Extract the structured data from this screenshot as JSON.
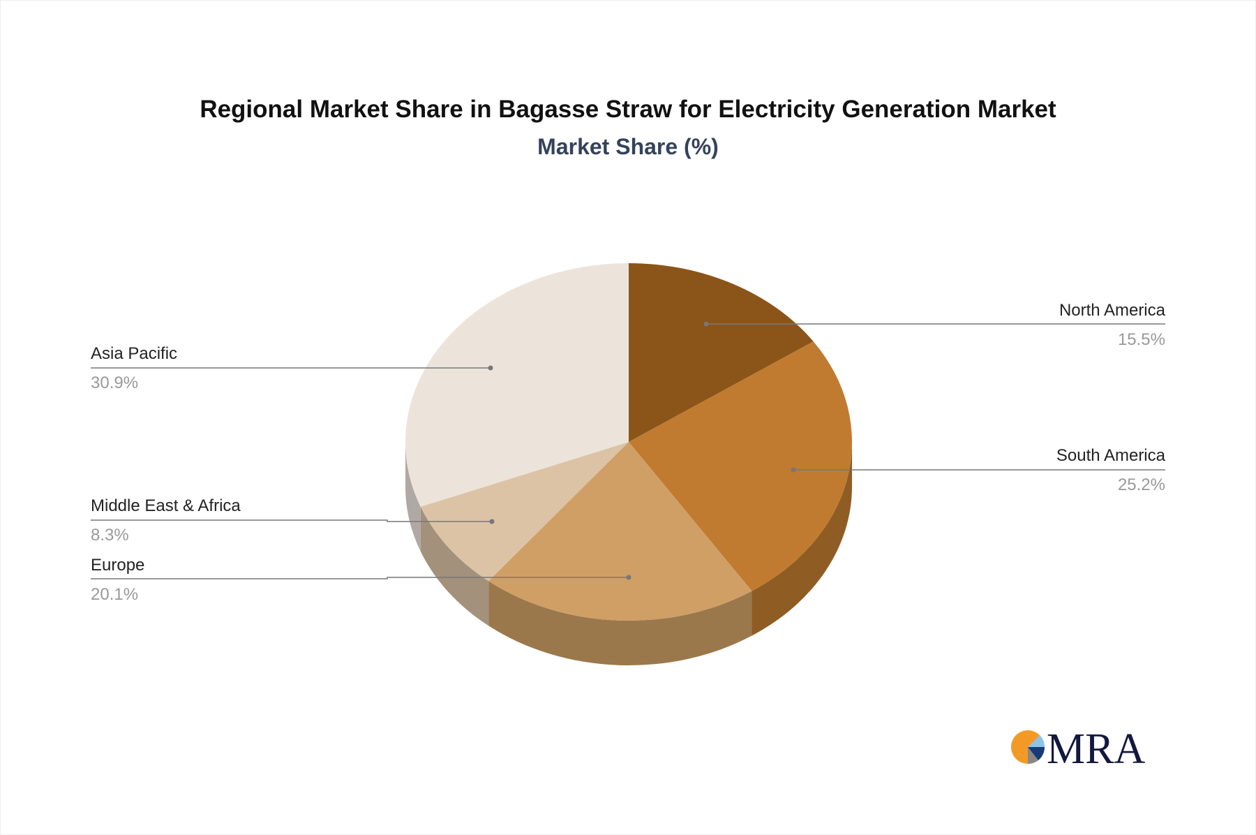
{
  "chart_data": {
    "type": "pie",
    "title": "Regional Market Share in Bagasse Straw for Electricity Generation Market",
    "subtitle": "Market Share (%)",
    "slices": [
      {
        "label": "North America",
        "value": 15.5,
        "display": "15.5%",
        "color": "#8b5519",
        "side": "#8f5c24"
      },
      {
        "label": "South America",
        "value": 25.2,
        "display": "25.2%",
        "color": "#c07b30",
        "side": "#8f5c24"
      },
      {
        "label": "Europe",
        "value": 20.1,
        "display": "20.1%",
        "color": "#d09f66",
        "side": "#9b784c"
      },
      {
        "label": "Middle East & Africa",
        "value": 8.3,
        "display": "8.3%",
        "color": "#dcc3a6",
        "side": "#a4917c"
      },
      {
        "label": "Asia Pacific",
        "value": 30.9,
        "display": "30.9%",
        "color": "#ece4db",
        "side": "#b0a8a3"
      }
    ]
  },
  "logo": {
    "text": "MRA"
  }
}
